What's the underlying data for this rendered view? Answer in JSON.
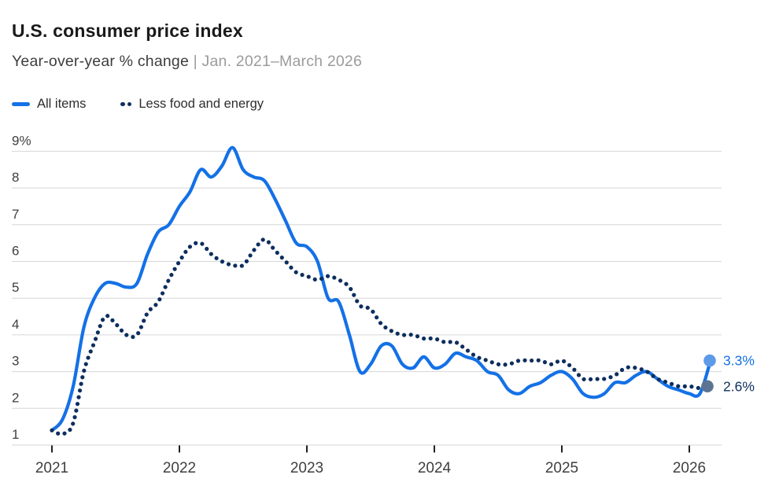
{
  "header": {
    "title": "U.S. consumer price index",
    "subtitle": "Year-over-year % change",
    "subtitle_separator": "|",
    "subtitle_range": "Jan. 2021–March 2026"
  },
  "legend": [
    {
      "label": "All items",
      "marker": "line",
      "color": "#1471e6"
    },
    {
      "label": "Less food and energy",
      "marker": "dots",
      "color": "#0d2e5e"
    }
  ],
  "colors": {
    "background": "#ffffff",
    "grid": "#d6d6d6",
    "axis_tick": "#1f1f1f",
    "axis_text": "#3f3f3f",
    "title_text": "#1a1a1a",
    "subtitle_text": "#3d3d3d",
    "subtitle_muted": "#9b9b9b"
  },
  "chart_data": {
    "type": "line",
    "title": "U.S. consumer price index",
    "subtitle": "Year-over-year % change | Jan. 2021–March 2026",
    "x_unit": "month",
    "x_start": "Jan. 2021",
    "x_end": "March 2026",
    "ylim": [
      1,
      9
    ],
    "grid": true,
    "y_ticks": [
      {
        "label": "9%",
        "value": 9
      },
      {
        "label": "8",
        "value": 8
      },
      {
        "label": "7",
        "value": 7
      },
      {
        "label": "6",
        "value": 6
      },
      {
        "label": "5",
        "value": 5
      },
      {
        "label": "4",
        "value": 4
      },
      {
        "label": "3",
        "value": 3
      },
      {
        "label": "2",
        "value": 2
      },
      {
        "label": "1",
        "value": 1
      }
    ],
    "x_ticks": [
      {
        "label": "2021",
        "month": 0
      },
      {
        "label": "2022",
        "month": 12
      },
      {
        "label": "2023",
        "month": 24
      },
      {
        "label": "2024",
        "month": 36
      },
      {
        "label": "2025",
        "month": 48
      },
      {
        "label": "2026",
        "month": 60
      }
    ],
    "series": [
      {
        "name": "All items",
        "slug": "all-items",
        "style": "solid",
        "color": "#1471e6",
        "end_dot_color": "#5d9ae8",
        "end_label": "3.3%",
        "values": [
          1.4,
          1.7,
          2.6,
          4.2,
          5.0,
          5.4,
          5.4,
          5.3,
          5.4,
          6.2,
          6.8,
          7.0,
          7.5,
          7.9,
          8.5,
          8.3,
          8.6,
          9.1,
          8.5,
          8.3,
          8.2,
          7.7,
          7.1,
          6.5,
          6.4,
          6.0,
          5.0,
          4.9,
          4.0,
          3.0,
          3.2,
          3.7,
          3.7,
          3.2,
          3.1,
          3.4,
          3.1,
          3.2,
          3.5,
          3.4,
          3.3,
          3.0,
          2.9,
          2.5,
          2.4,
          2.6,
          2.7,
          2.9,
          3.0,
          2.8,
          2.4,
          2.3,
          2.4,
          2.7,
          2.7,
          2.9,
          3.0,
          2.8,
          2.6,
          2.5,
          2.4,
          2.4,
          3.3
        ]
      },
      {
        "name": "Less food and energy",
        "slug": "less-food-and-energy",
        "style": "dotted",
        "color": "#0d2e5e",
        "end_dot_color": "#5c7493",
        "end_label": "2.6%",
        "values": [
          1.4,
          1.3,
          1.6,
          3.0,
          3.8,
          4.5,
          4.3,
          4.0,
          4.0,
          4.6,
          4.9,
          5.5,
          6.0,
          6.4,
          6.5,
          6.2,
          6.0,
          5.9,
          5.9,
          6.3,
          6.6,
          6.3,
          6.0,
          5.7,
          5.6,
          5.5,
          5.6,
          5.5,
          5.3,
          4.8,
          4.7,
          4.3,
          4.1,
          4.0,
          4.0,
          3.9,
          3.9,
          3.8,
          3.8,
          3.6,
          3.4,
          3.3,
          3.2,
          3.2,
          3.3,
          3.3,
          3.3,
          3.2,
          3.3,
          3.1,
          2.8,
          2.8,
          2.8,
          2.9,
          3.1,
          3.1,
          3.0,
          2.8,
          2.7,
          2.6,
          2.6,
          2.55,
          2.6
        ]
      }
    ]
  }
}
